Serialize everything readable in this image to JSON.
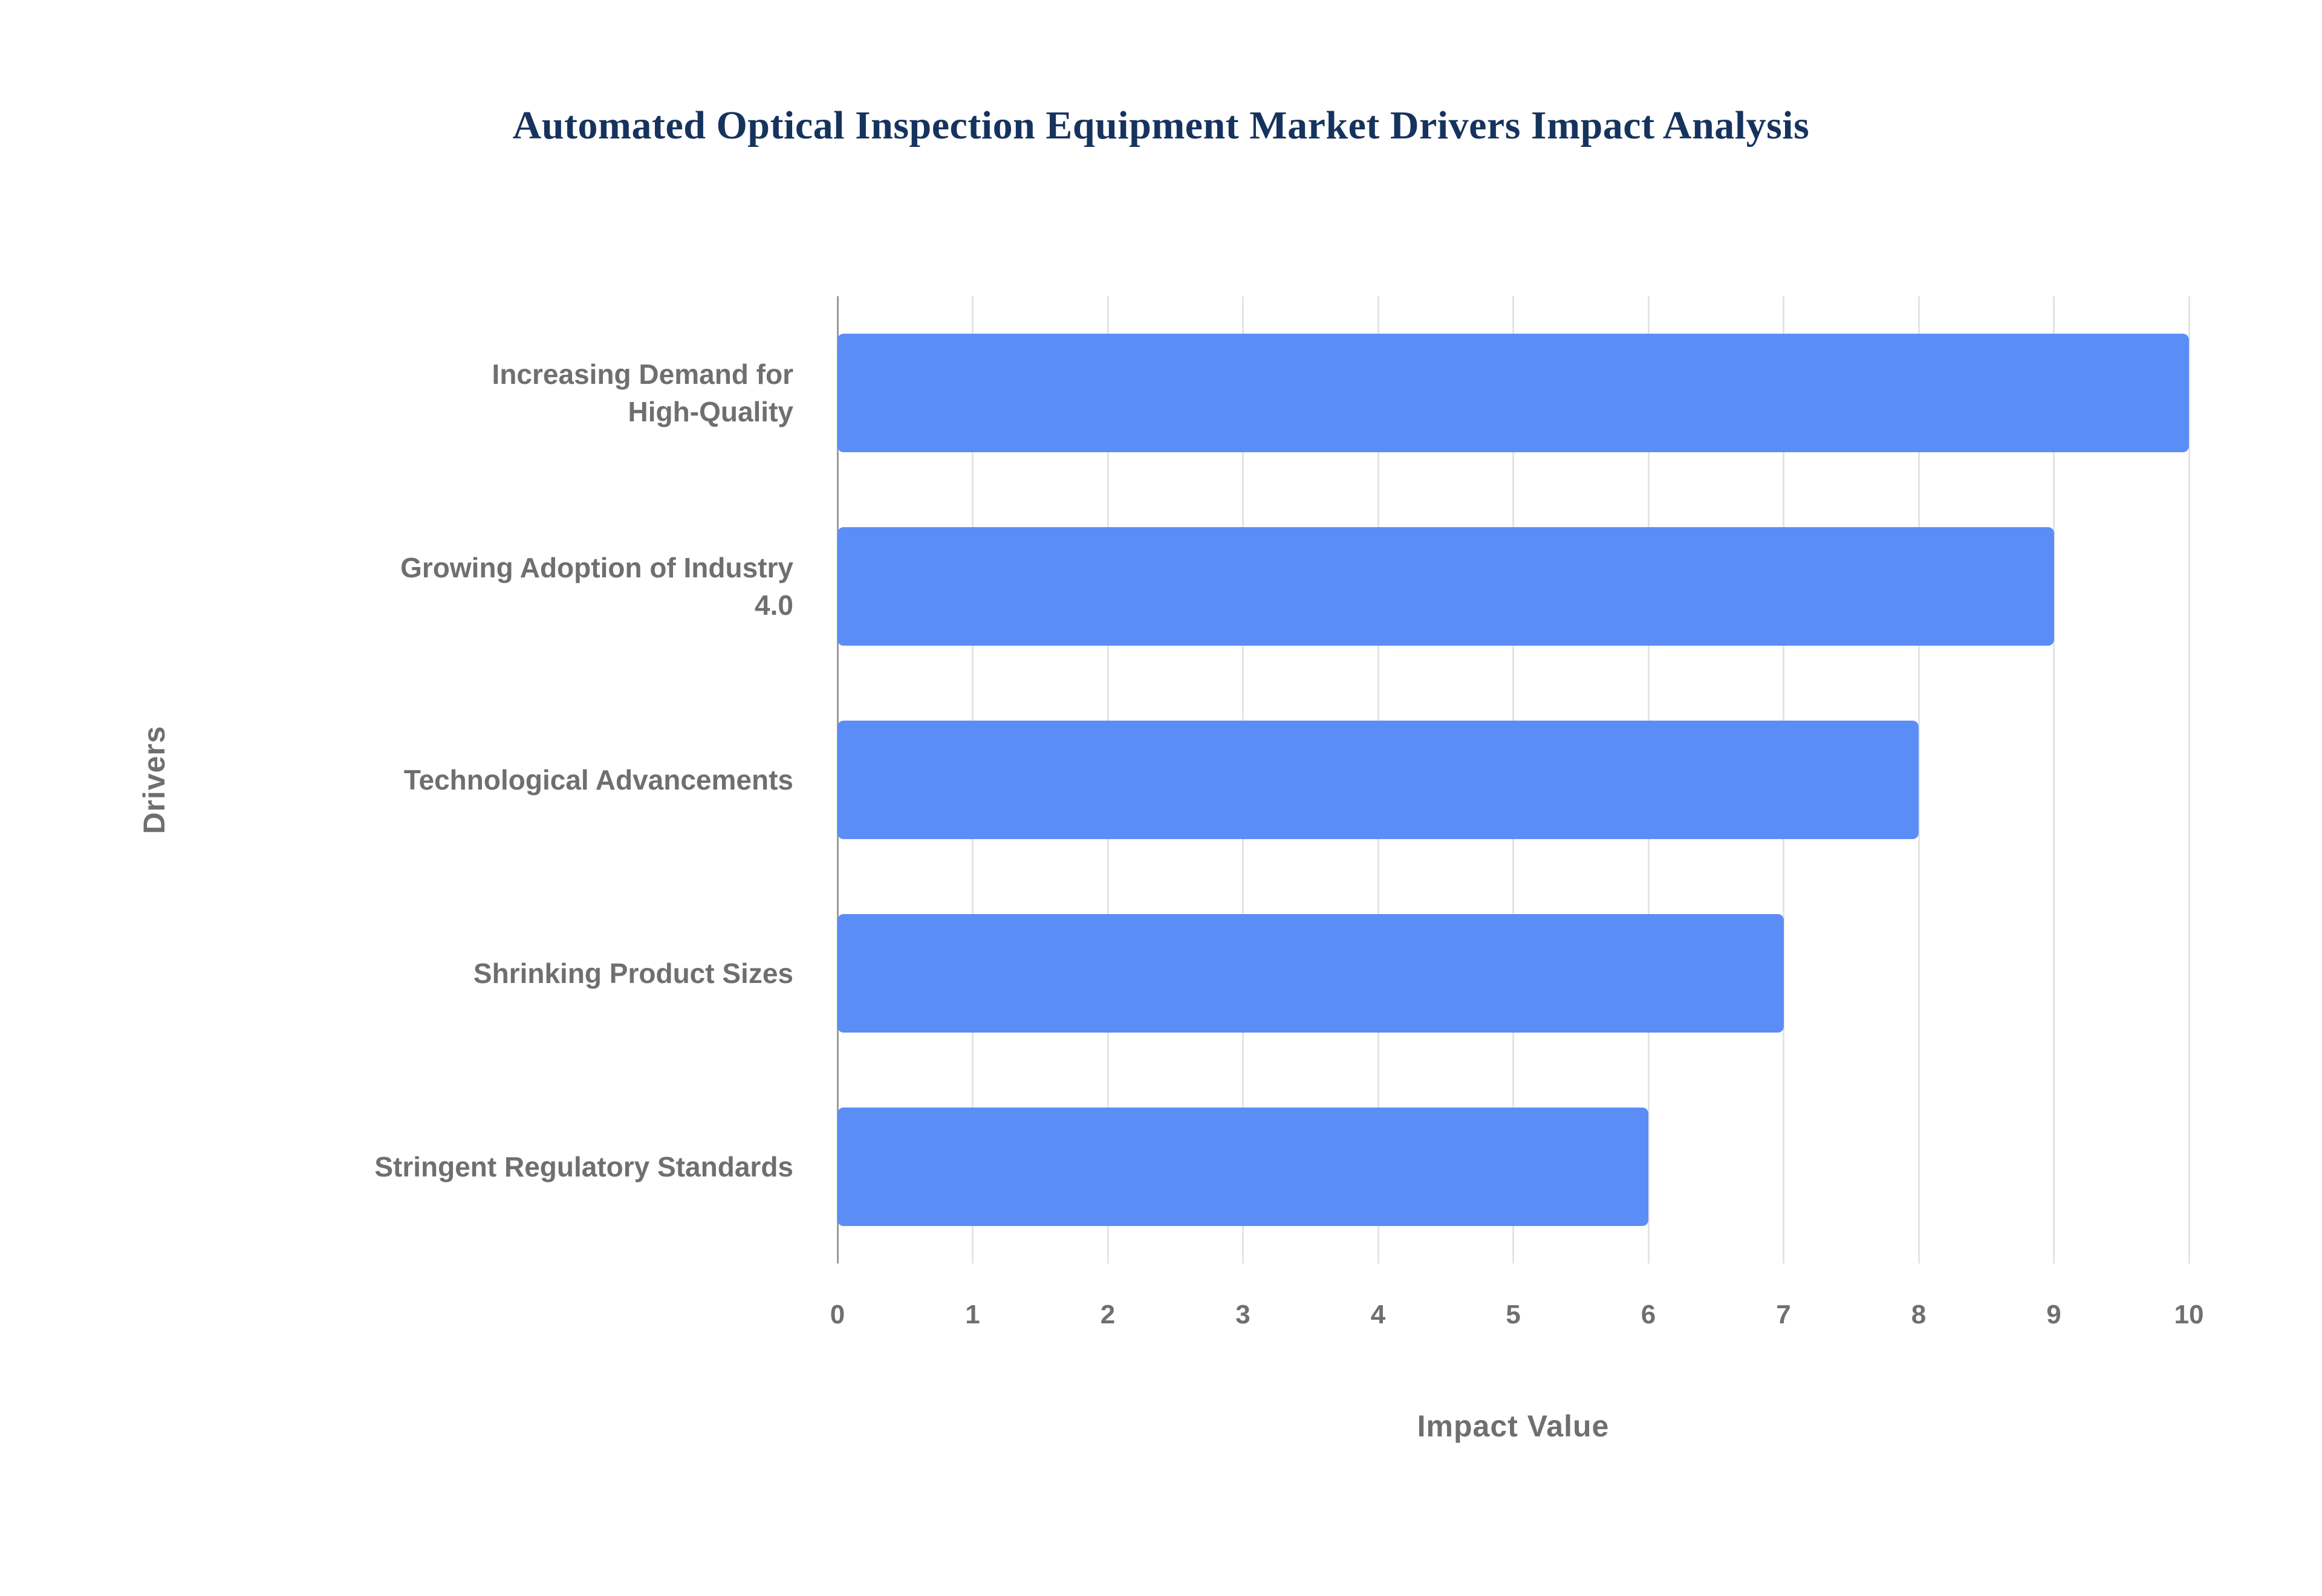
{
  "chart_data": {
    "type": "bar",
    "orientation": "horizontal",
    "title": "Automated Optical Inspection Equipment Market Drivers Impact Analysis",
    "categories": [
      "Increasing Demand for High-Quality",
      "Growing Adoption of Industry 4.0",
      "Technological Advancements",
      "Shrinking Product Sizes",
      "Stringent Regulatory Standards"
    ],
    "categories_wrapped": [
      "Increasing Demand for\nHigh-Quality",
      "Growing Adoption of Industry\n4.0",
      "Technological Advancements",
      "Shrinking Product Sizes",
      "Stringent Regulatory Standards"
    ],
    "values": [
      10,
      9,
      8,
      7,
      6
    ],
    "xlabel": "Impact Value",
    "ylabel": "Drivers",
    "xlim": [
      0,
      10
    ],
    "xticks": [
      0,
      1,
      2,
      3,
      4,
      5,
      6,
      7,
      8,
      9,
      10
    ],
    "grid": true,
    "legend": false,
    "colors": {
      "bar": "#5b8df6",
      "title": "#16335e",
      "axis_text": "#6f6f6f",
      "gridline": "#e4e4e4",
      "axis_line": "#9a9a9a",
      "background": "#ffffff"
    }
  }
}
